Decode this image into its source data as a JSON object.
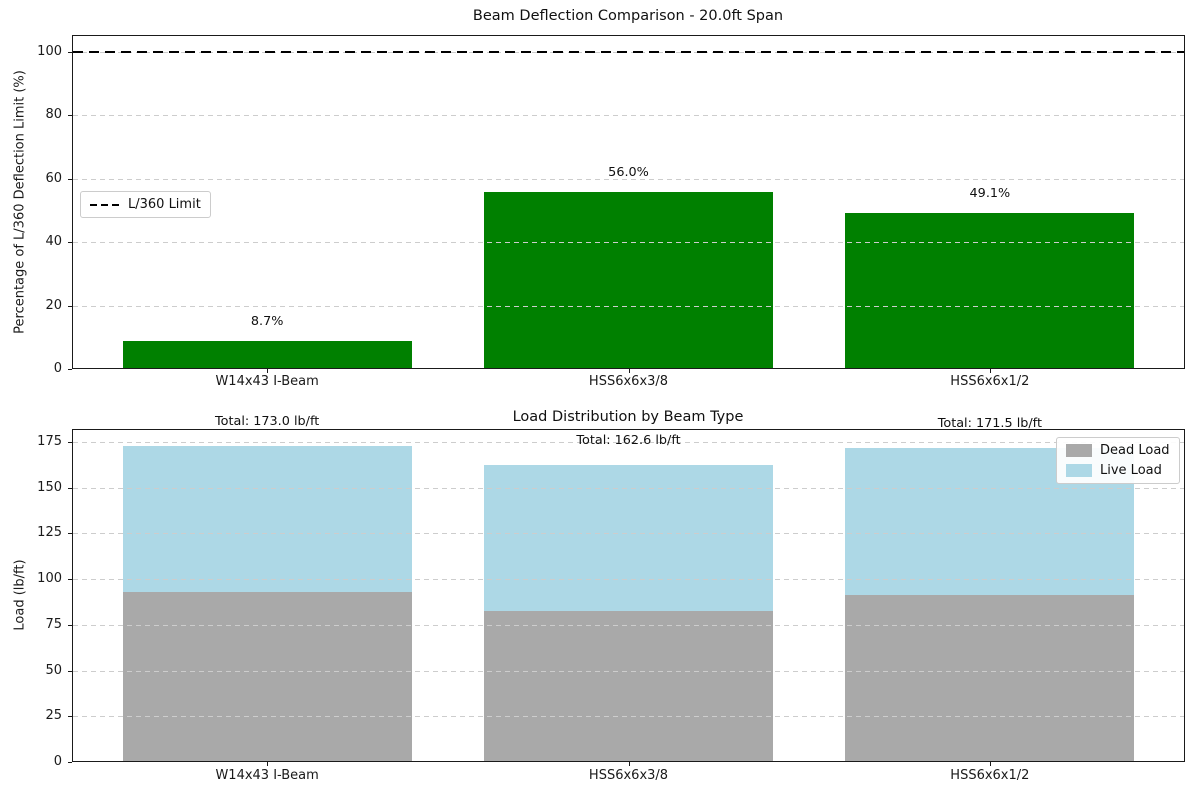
{
  "figure": {
    "background": "#ffffff"
  },
  "chart_data": [
    {
      "id": "deflection",
      "type": "bar",
      "title": "Beam Deflection Comparison - 20.0ft Span",
      "ylabel": "Percentage of L/360 Deflection Limit (%)",
      "categories": [
        "W14x43 I-Beam",
        "HSS6x6x3/8",
        "HSS6x6x1/2"
      ],
      "values": [
        8.7,
        56.0,
        49.1
      ],
      "bar_labels": [
        "8.7%",
        "56.0%",
        "49.1%"
      ],
      "bar_color": "#008000",
      "ylim": [
        0,
        105.4
      ],
      "yticks": [
        0,
        20,
        40,
        60,
        80,
        100
      ],
      "grid": true,
      "gridline_ticks": [
        20,
        40,
        60,
        80,
        100
      ],
      "limit_line": {
        "value": 100,
        "label": "L/360 Limit",
        "color": "#000000",
        "style": "dashed"
      },
      "legend_position": "center-left"
    },
    {
      "id": "loads",
      "type": "stacked-bar",
      "title": "Load Distribution by Beam Type",
      "ylabel": "Load (lb/ft)",
      "categories": [
        "W14x43 I-Beam",
        "HSS6x6x3/8",
        "HSS6x6x1/2"
      ],
      "series": [
        {
          "name": "Dead Load",
          "values": [
            93.0,
            82.6,
            91.5
          ],
          "color": "#a9a9a9"
        },
        {
          "name": "Live Load",
          "values": [
            80.0,
            80.0,
            80.0
          ],
          "color": "#add8e6"
        }
      ],
      "totals": [
        173.0,
        162.6,
        171.5
      ],
      "total_labels": [
        "Total: 173.0 lb/ft",
        "Total: 162.6 lb/ft",
        "Total: 171.5 lb/ft"
      ],
      "ylim": [
        0,
        182.1
      ],
      "yticks": [
        0,
        25,
        50,
        75,
        100,
        125,
        150,
        175
      ],
      "grid": true,
      "gridline_ticks": [
        25,
        50,
        75,
        100,
        125,
        150,
        175
      ],
      "legend_position": "upper-right"
    }
  ]
}
